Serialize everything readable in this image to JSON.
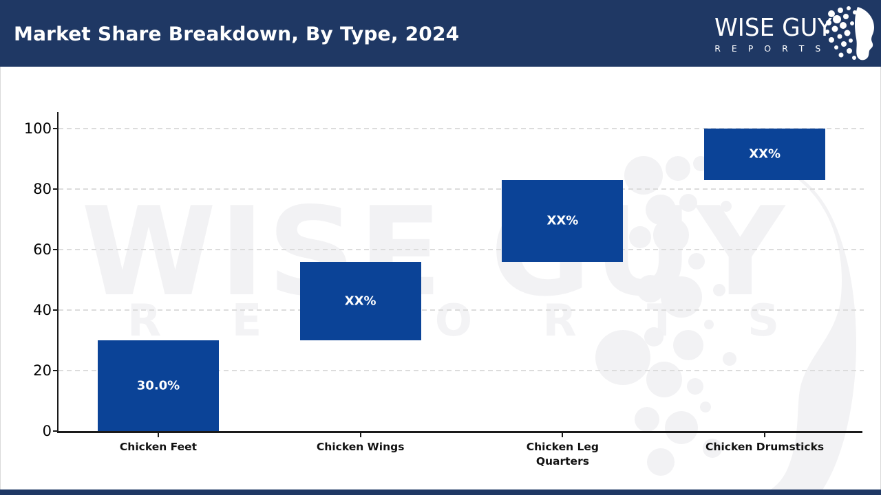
{
  "header": {
    "title": "Market Share Breakdown, By Type, 2024",
    "bg_color": "#1f3864",
    "logo": {
      "line1": "WISE GUY",
      "line2": "R E P O R T S"
    }
  },
  "watermark": {
    "line1": "WISE GUY",
    "line2": "R E P O R T S"
  },
  "chart_data": {
    "type": "bar",
    "subtype": "waterfall",
    "title": "Market Share Breakdown, By Type, 2024",
    "categories": [
      "Chicken Feet",
      "Chicken Wings",
      "Chicken Leg Quarters",
      "Chicken Drumsticks"
    ],
    "category_lines": [
      [
        "Chicken Feet"
      ],
      [
        "Chicken Wings"
      ],
      [
        "Chicken Leg",
        "Quarters"
      ],
      [
        "Chicken Drumsticks"
      ]
    ],
    "segments": [
      {
        "category": "Chicken Feet",
        "start": 0,
        "end": 30,
        "label": "30.0%"
      },
      {
        "category": "Chicken Wings",
        "start": 30,
        "end": 56,
        "label": "XX%"
      },
      {
        "category": "Chicken Leg Quarters",
        "start": 56,
        "end": 83,
        "label": "XX%"
      },
      {
        "category": "Chicken Drumsticks",
        "start": 83,
        "end": 100,
        "label": "XX%"
      }
    ],
    "yticks": [
      0,
      20,
      40,
      60,
      80,
      100
    ],
    "ylim": [
      0,
      105.5
    ],
    "xlabel": "",
    "ylabel": "",
    "grid": "horizontal-dashed",
    "legend": null,
    "bar_color": "#0b4397",
    "bar_label_color": "#ffffff",
    "axis_color": "#1a1a1a"
  },
  "footer": {
    "bg_color": "#1f3864"
  }
}
